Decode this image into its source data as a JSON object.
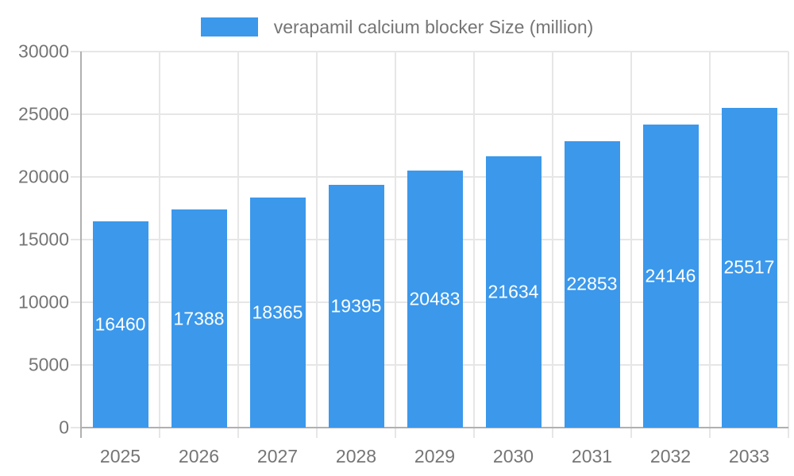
{
  "legend": {
    "label": "verapamil calcium blocker Size (million)"
  },
  "chart_data": {
    "type": "bar",
    "title": "verapamil calcium blocker Size (million)",
    "categories": [
      "2025",
      "2026",
      "2027",
      "2028",
      "2029",
      "2030",
      "2031",
      "2032",
      "2033"
    ],
    "values": [
      16460,
      17388,
      18365,
      19395,
      20483,
      21634,
      22853,
      24146,
      25517
    ],
    "series_name": "verapamil calcium blocker Size (million)",
    "xlabel": "",
    "ylabel": "",
    "ylim": [
      0,
      30000
    ],
    "yticks": [
      0,
      5000,
      10000,
      15000,
      20000,
      25000,
      30000
    ],
    "grid": true,
    "legend_position": "top-center",
    "value_labels": "inside-center-white",
    "colors": {
      "bar": "#3B98EB",
      "grid": "#e6e6e6",
      "axis": "#b0b0b0",
      "tick_text": "#757575",
      "value_text": "#ffffff",
      "background": "#ffffff"
    }
  }
}
